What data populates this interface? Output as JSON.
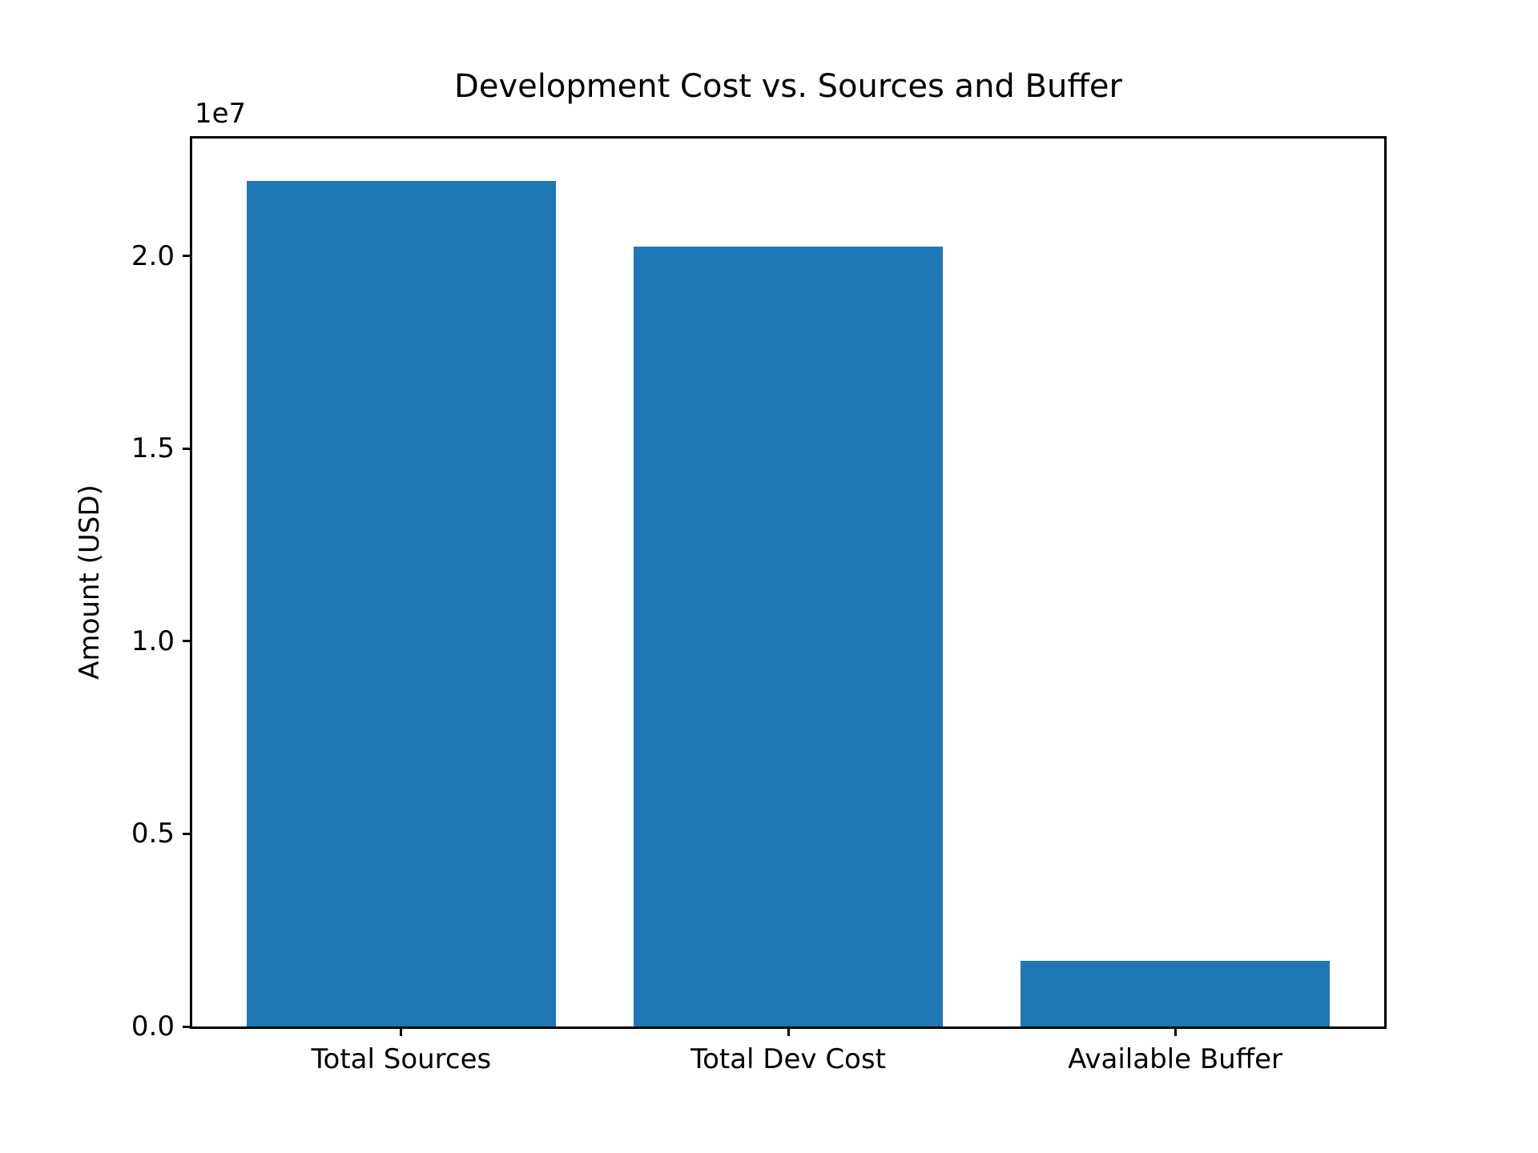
{
  "figure": {
    "background": "#ffffff",
    "axis_color": "#000000"
  },
  "chart_data": {
    "type": "bar",
    "title": "Development Cost vs. Sources and Buffer",
    "categories": [
      "Total Sources",
      "Total Dev Cost",
      "Available Buffer"
    ],
    "values": [
      21950000,
      20250000,
      1700000
    ],
    "xlabel": "",
    "ylabel": "Amount (USD)",
    "offset_text": "1e7",
    "ylim": [
      0,
      23047500
    ],
    "yticks": [
      0,
      5000000,
      10000000,
      15000000,
      20000000
    ],
    "ytick_labels": [
      "0.0",
      "0.5",
      "1.0",
      "1.5",
      "2.0"
    ],
    "bar_color": "#1f77b4",
    "grid": false,
    "legend": null,
    "bar_width_fraction": 0.8,
    "xlim": [
      -0.54,
      2.54
    ]
  }
}
